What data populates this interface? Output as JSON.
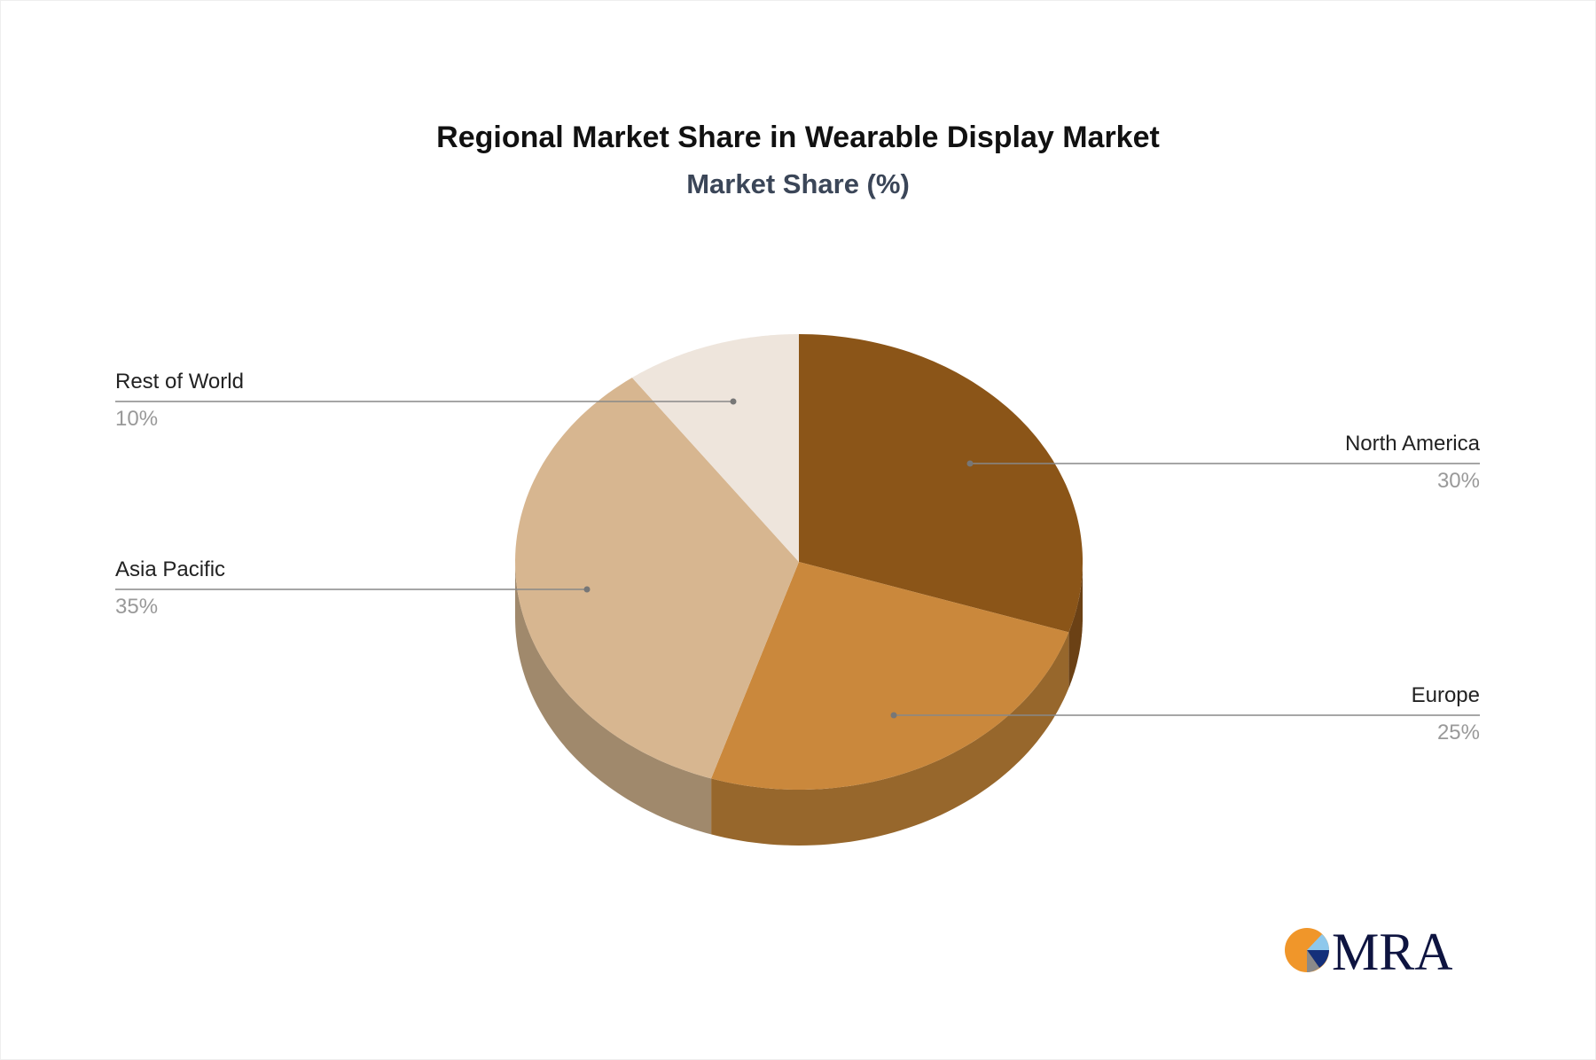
{
  "chart_data": {
    "type": "pie",
    "title": "Regional Market Share in Wearable Display Market",
    "subtitle": "Market Share (%)",
    "style": "3d",
    "slices": [
      {
        "name": "North America",
        "value": 30,
        "label": "30%",
        "color": "#8B5518",
        "side_color": "#6B4115"
      },
      {
        "name": "Europe",
        "value": 25,
        "label": "25%",
        "color": "#CA883C",
        "side_color": "#97672C"
      },
      {
        "name": "Asia Pacific",
        "value": 35,
        "label": "35%",
        "color": "#D7B690",
        "side_color": "#A0896C"
      },
      {
        "name": "Rest of World",
        "value": 10,
        "label": "10%",
        "color": "#EEE5DC",
        "side_color": "#C9BFB4"
      }
    ]
  },
  "logo": {
    "text": "MRA"
  }
}
